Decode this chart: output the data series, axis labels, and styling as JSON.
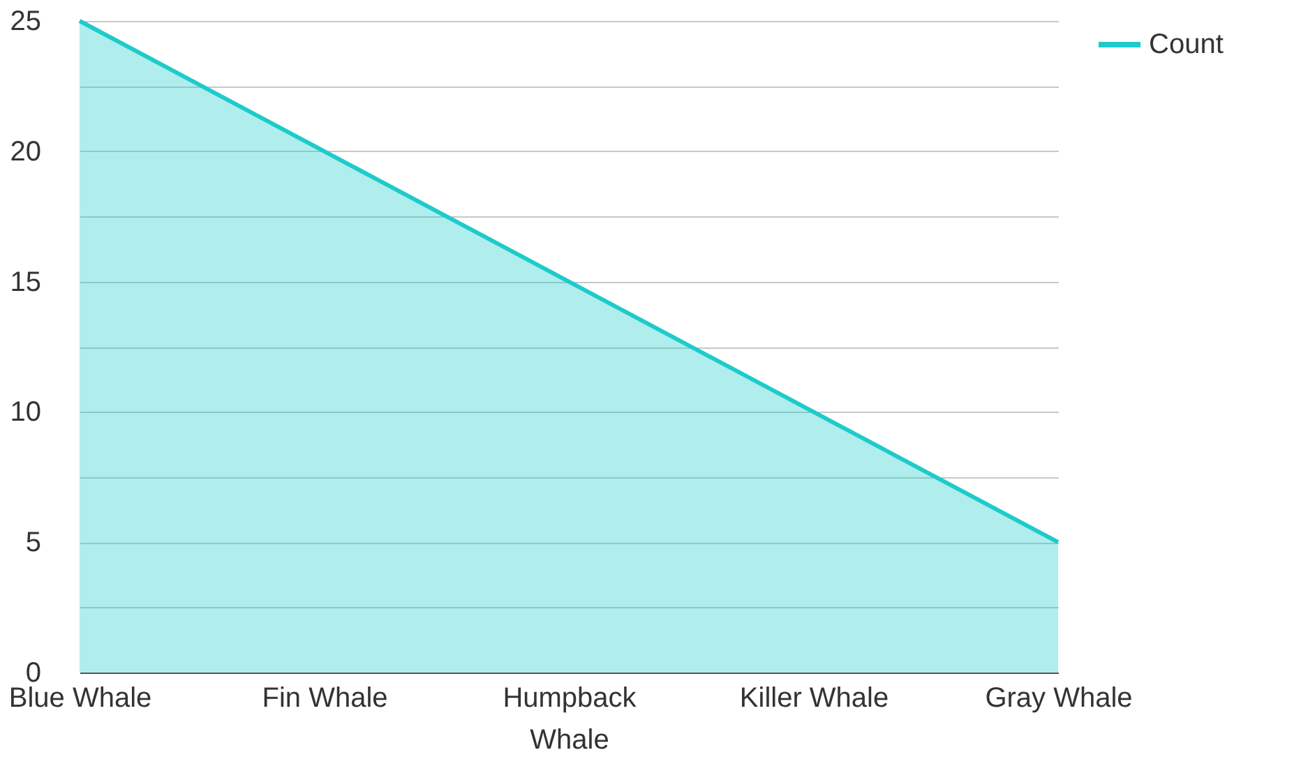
{
  "chart_data": {
    "type": "area",
    "categories": [
      "Blue Whale",
      "Fin Whale",
      "Humpback Whale",
      "Killer Whale",
      "Gray Whale"
    ],
    "series": [
      {
        "name": "Count",
        "color": "#1ecbcb",
        "values": [
          25,
          20,
          15,
          10,
          5
        ]
      }
    ],
    "ylim": [
      0,
      25
    ],
    "yticks": [
      0,
      {
        "value": 2.5,
        "label": null
      },
      5,
      {
        "value": 7.5,
        "label": null
      },
      10,
      {
        "value": 12.5,
        "label": null
      },
      15,
      {
        "value": 17.5,
        "label": null
      },
      20,
      {
        "value": 22.5,
        "label": null
      },
      25
    ],
    "grid": "y",
    "legend": "top right"
  }
}
